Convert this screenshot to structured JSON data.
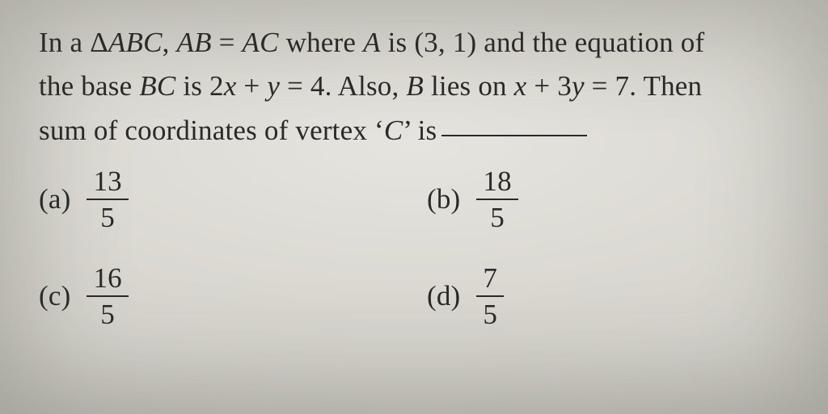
{
  "colors": {
    "text": "#2a2a28",
    "background_center": "#e6e4de",
    "background_mid": "#d4d2cb",
    "background_edge": "#b9b7b0",
    "rule": "#2a2a28"
  },
  "typography": {
    "family": "Georgia / Times-like serif",
    "body_fontsize_pt": 26,
    "line_height": 1.55
  },
  "question": {
    "line1_pre": "In a Δ",
    "line1_tri": "ABC",
    "line1_mid1": ", ",
    "line1_eq1_l": "AB",
    "line1_eq1_m": " = ",
    "line1_eq1_r": "AC",
    "line1_mid2": " where ",
    "line1_A": "A",
    "line1_mid3": " is (3, 1) and the equation of",
    "line2_pre": "the base ",
    "line2_bc": "BC",
    "line2_mid1": " is 2",
    "line2_x": "x",
    "line2_mid2": " + ",
    "line2_y": "y",
    "line2_mid3": " = 4. Also, ",
    "line2_B": "B",
    "line2_mid4": " lies on ",
    "line2_x2": "x",
    "line2_mid5": " + 3",
    "line2_y2": "y",
    "line2_mid6": " = 7. Then",
    "line3_pre": "sum of coordinates of vertex ‘",
    "line3_C": "C",
    "line3_post": "’ is"
  },
  "options": [
    {
      "label": "(a)",
      "numer": "13",
      "denom": "5"
    },
    {
      "label": "(b)",
      "numer": "18",
      "denom": "5"
    },
    {
      "label": "(c)",
      "numer": "16",
      "denom": "5"
    },
    {
      "label": "(d)",
      "numer": "7",
      "denom": "5"
    }
  ]
}
